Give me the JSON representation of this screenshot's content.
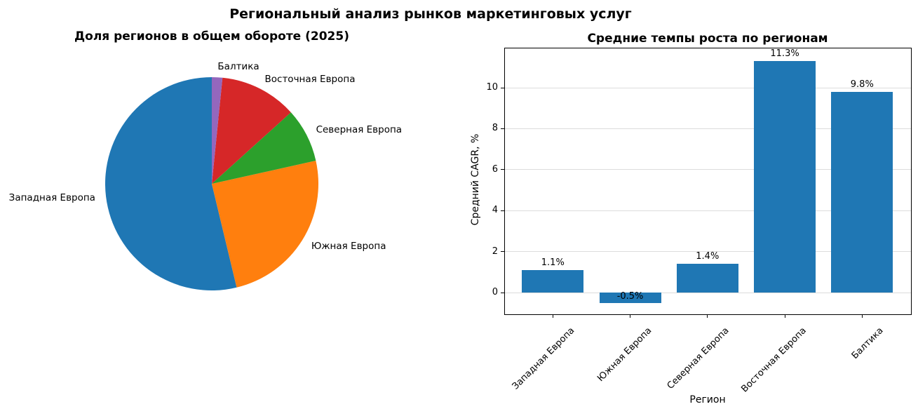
{
  "figure": {
    "suptitle": "Региональный анализ рынков маркетинговых услуг",
    "background": "#ffffff",
    "text_color": "#000000"
  },
  "chart_data": [
    {
      "type": "pie",
      "title": "Доля регионов в общем обороте (2025)",
      "labels": [
        "Западная Европа",
        "Южная Европа",
        "Северная Европа",
        "Восточная Европа",
        "Балтика"
      ],
      "values": [
        53.7,
        24.7,
        8.2,
        11.7,
        1.6
      ],
      "pct_labels": [
        "53.7%",
        "24.7%",
        "8.2%",
        "11.7%",
        "1.6%"
      ],
      "colors": [
        "#1f77b4",
        "#ff7f0e",
        "#2ca02c",
        "#d62728",
        "#9467bd"
      ],
      "start_angle_deg": 90,
      "direction": "counterclockwise",
      "pct_distance": 0.6,
      "label_distance": 1.1
    },
    {
      "type": "bar",
      "title": "Средние темпы роста по регионам",
      "categories": [
        "Западная Европа",
        "Южная Европа",
        "Северная Европа",
        "Восточная Европа",
        "Балтика"
      ],
      "values": [
        1.1,
        -0.5,
        1.4,
        11.3,
        9.8
      ],
      "bar_labels": [
        "1.1%",
        "-0.5%",
        "1.4%",
        "11.3%",
        "9.8%"
      ],
      "xlabel": "Регион",
      "ylabel": "Средний CAGR, %",
      "ylim": [
        -1.06,
        11.92
      ],
      "yticks": [
        0,
        2,
        4,
        6,
        8,
        10
      ],
      "bar_color": "#1f77b4",
      "grid": true,
      "grid_color": "#dcdcdc",
      "legend": "none"
    }
  ]
}
